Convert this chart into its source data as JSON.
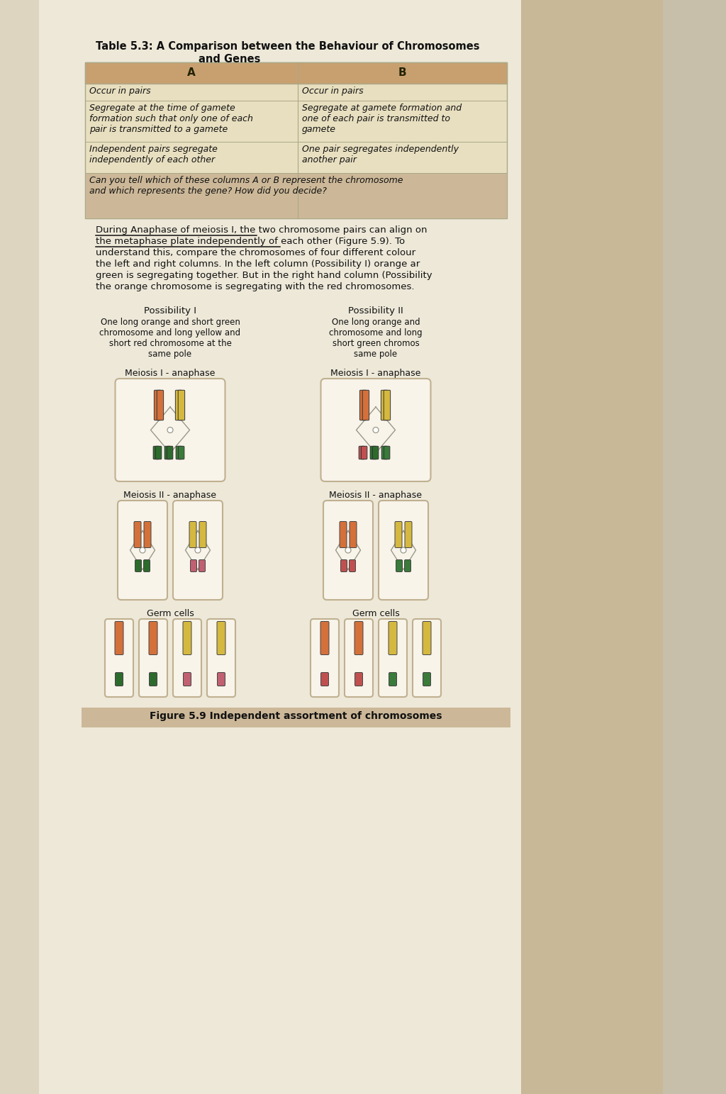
{
  "title_line1": "Table 5.3: A Comparison between the Behaviour of Chromosomes",
  "title_line2": "and Genes",
  "col_a": "A",
  "col_b": "B",
  "row1a": "Occur in pairs",
  "row1b": "Occur in pairs",
  "row2a": "Segregate at the time of gamete\nformation such that only one of each\npair is transmitted to a gamete",
  "row2b": "Segregate at gamete formation and\none of each pair is transmitted to\ngamete",
  "row3a": "Independent pairs segregate\nindependently of each other",
  "row3b": "One pair segregates independently\nanother pair",
  "row4": "Can you tell which of these columns A or B represent the chromosome\nand which represents the gene? How did you decide?",
  "body": [
    "During Anaphase of meiosis I, the two chromosome pairs can align on",
    "the metaphase plate independently of each other (Figure 5.9). To",
    "understand this, compare the chromosomes of four different colour",
    "the left and right columns. In the left column (Possibility I) orange ar",
    "green is segregating together. But in the right hand column (Possibility",
    "the orange chromosome is segregating with the red chromosomes."
  ],
  "poss1_title": "Possibility I",
  "poss1_desc": "One long orange and short green\nchromosome and long yellow and\nshort red chromosome at the\nsame pole",
  "poss2_title": "Possibility II",
  "poss2_desc": "One long orange and\nchromosome and long\nshort green chromos\nsame pole",
  "mei1_label": "Meiosis I - anaphase",
  "mei2_label": "Meiosis II - anaphase",
  "germ_label": "Germ cells",
  "fig_caption": "Figure 5.9 Independent assortment of chromosomes",
  "page_bg": "#ddd5c0",
  "content_bg": "#ede8d8",
  "table_bg": "#e8dfc0",
  "table_header_bg": "#c8a070",
  "table_q_bg": "#ccb898",
  "orange": "#d4703a",
  "red": "#c05050",
  "yellow": "#d4b840",
  "green": "#3a7a3a",
  "dark_green": "#2d6b2d",
  "pink": "#c06070",
  "sidebar_bg": "#c8bfaa",
  "right_text_bg": "#c8b898"
}
